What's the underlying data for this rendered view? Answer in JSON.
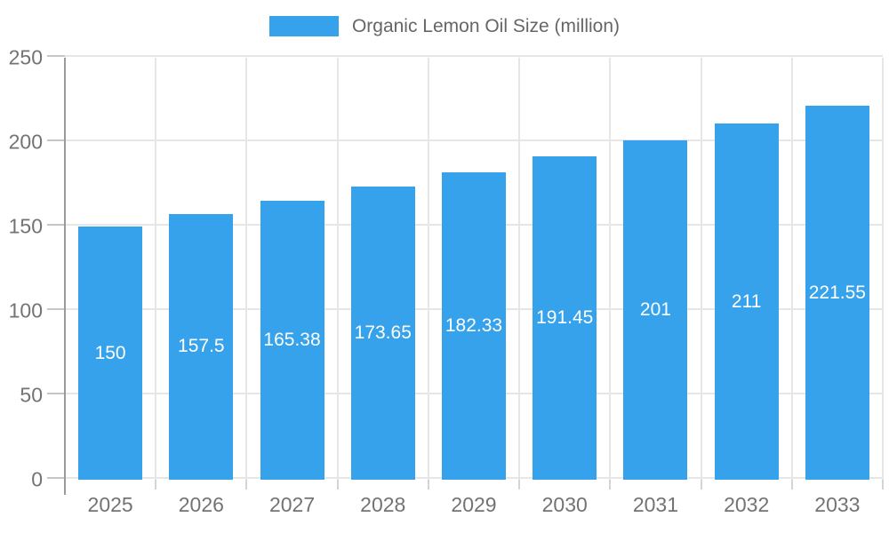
{
  "legend": {
    "label": "Organic Lemon Oil Size (million)",
    "swatch_color": "#36A2EB"
  },
  "chart_data": {
    "type": "bar",
    "title": "",
    "xlabel": "",
    "ylabel": "",
    "categories": [
      "2025",
      "2026",
      "2027",
      "2028",
      "2029",
      "2030",
      "2031",
      "2032",
      "2033"
    ],
    "series": [
      {
        "name": "Organic Lemon Oil Size (million)",
        "values": [
          150,
          157.5,
          165.38,
          173.65,
          182.33,
          191.45,
          201,
          211,
          221.55
        ]
      }
    ],
    "ylim": [
      0,
      250
    ],
    "yticks": [
      0,
      50,
      100,
      150,
      200,
      250
    ],
    "grid": true,
    "legend_position": "top",
    "bar_color": "#36A2EB",
    "value_label_color": "#ffffff",
    "axis_text_color": "#737373"
  }
}
